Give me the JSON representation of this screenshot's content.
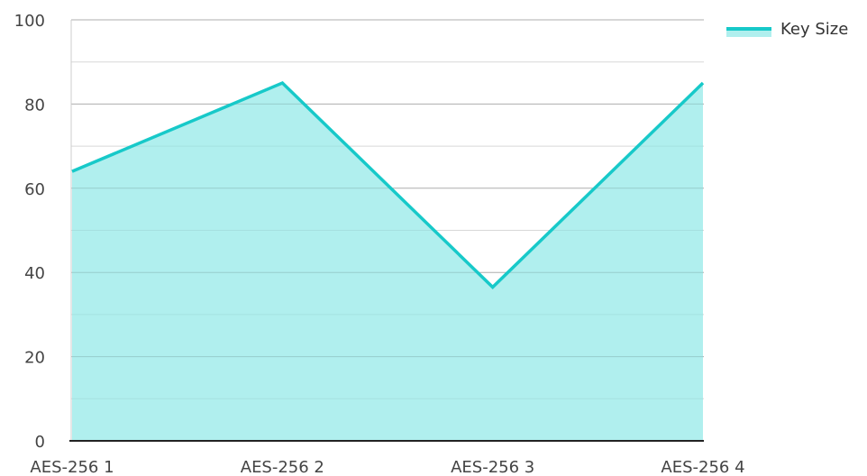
{
  "chart_data": {
    "type": "area",
    "categories": [
      "AES-256 1",
      "AES-256 2",
      "AES-256 3",
      "AES-256 4"
    ],
    "series": [
      {
        "name": "Key Size",
        "values": [
          64,
          85,
          36.5,
          85
        ],
        "line_color": "#17c9c9",
        "fill_color": "#b0efee"
      }
    ],
    "ylim": [
      0,
      100
    ],
    "yticks": [
      0,
      20,
      40,
      60,
      80,
      100
    ],
    "ytick_labels": [
      "0",
      "20",
      "40",
      "60",
      "80",
      "100"
    ],
    "grid": true,
    "legend_position": "top-right",
    "title": "",
    "xlabel": "",
    "ylabel": ""
  }
}
